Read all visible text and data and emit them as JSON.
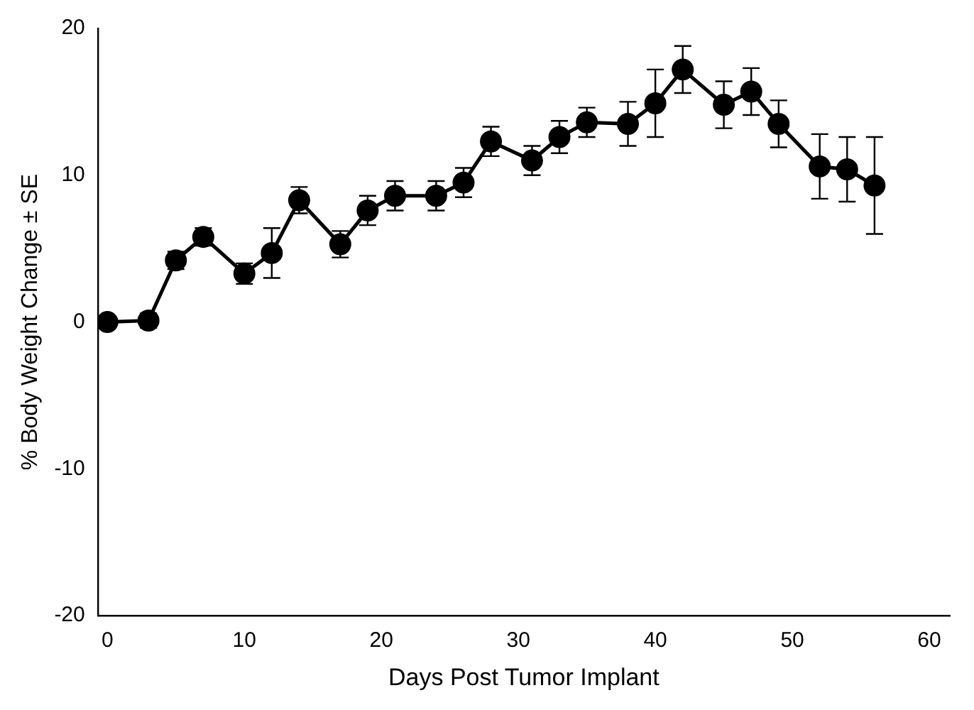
{
  "chart_data": {
    "type": "line",
    "xlabel": "Days Post Tumor Implant",
    "ylabel": "% Body Weight Change ± SE",
    "x": [
      0,
      3,
      5,
      7,
      10,
      12,
      14,
      17,
      19,
      21,
      24,
      26,
      28,
      31,
      33,
      35,
      38,
      40,
      42,
      45,
      47,
      49,
      52,
      54,
      56
    ],
    "series": [
      {
        "color": "#000000",
        "values": [
          0,
          0.1,
          4.2,
          5.8,
          3.3,
          4.7,
          8.3,
          5.3,
          7.6,
          8.6,
          8.6,
          9.5,
          12.3,
          11.0,
          12.6,
          13.6,
          13.5,
          14.9,
          17.2,
          14.8,
          15.7,
          13.5,
          10.6,
          10.4,
          9.3
        ],
        "errors": [
          null,
          0.5,
          0.6,
          0.6,
          0.7,
          1.7,
          0.9,
          0.9,
          1.0,
          1.0,
          1.0,
          1.0,
          1.0,
          1.0,
          1.1,
          1.0,
          1.5,
          2.3,
          1.6,
          1.6,
          1.6,
          1.6,
          2.2,
          2.2,
          3.3
        ]
      }
    ],
    "xlim": [
      -0.7,
      61.5
    ],
    "xticks": [
      0,
      10,
      20,
      30,
      40,
      50,
      60
    ],
    "ylim": [
      -20,
      20
    ],
    "yticks": [
      -20,
      -10,
      0,
      10,
      20
    ],
    "grid": false,
    "legend": false,
    "marker": "circle",
    "line_style": "solid"
  }
}
